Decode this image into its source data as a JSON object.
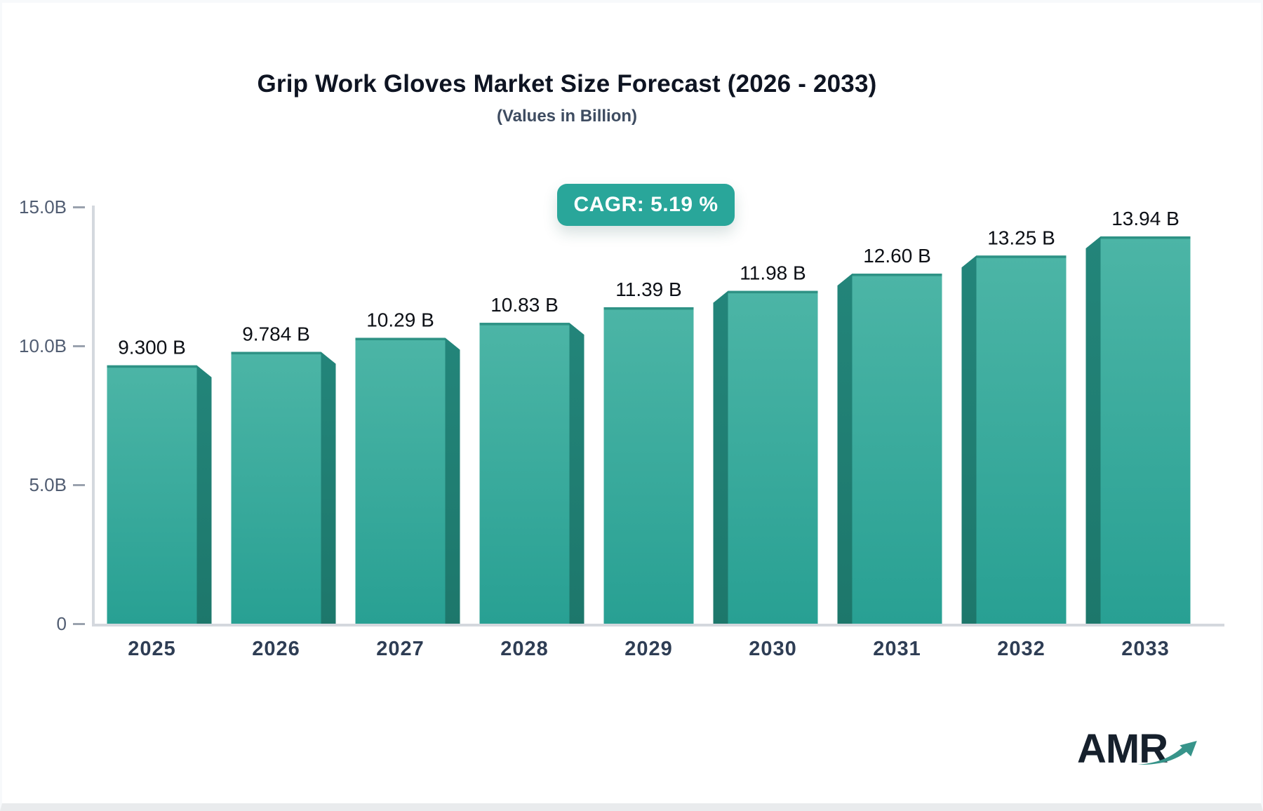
{
  "header": {
    "title": "Grip Work Gloves Market Size Forecast (2026 - 2033)",
    "subtitle": "(Values in Billion)"
  },
  "badge": {
    "label": "CAGR: 5.19 %",
    "bg": "#29a69a"
  },
  "chart_data": {
    "type": "bar",
    "title": "Grip Work Gloves Market Size Forecast (2026 - 2033)",
    "subtitle": "(Values in Billion)",
    "cagr": "5.19 %",
    "categories": [
      "2025",
      "2026",
      "2027",
      "2028",
      "2029",
      "2030",
      "2031",
      "2032",
      "2033"
    ],
    "values": [
      9.3,
      9.784,
      10.29,
      10.83,
      11.39,
      11.98,
      12.6,
      13.25,
      13.94
    ],
    "value_labels": [
      "9.300 B",
      "9.784 B",
      "10.29 B",
      "10.83 B",
      "11.39 B",
      "11.98 B",
      "12.60 B",
      "13.25 B",
      "13.94 B"
    ],
    "unit": "B",
    "ylim": [
      0,
      15
    ],
    "yticks": [
      {
        "label": "15.0B",
        "value": 15
      },
      {
        "label": "10.0B",
        "value": 10
      },
      {
        "label": "5.0B",
        "value": 5
      },
      {
        "label": "0",
        "value": 0
      }
    ],
    "grid": false,
    "legend": false,
    "colors": {
      "bar_top": "#4cb5a6",
      "bar_bottom": "#28a093",
      "bar_side": "#1f7d70",
      "bar_top_edge": "#2e9285",
      "axis_line": "#d4d8de",
      "tick_text": "#515d72",
      "x_label_text": "#2e3d54",
      "value_text": "#0d1016"
    }
  },
  "logo": {
    "text": "AMR",
    "arrow_color": "#37948a"
  }
}
